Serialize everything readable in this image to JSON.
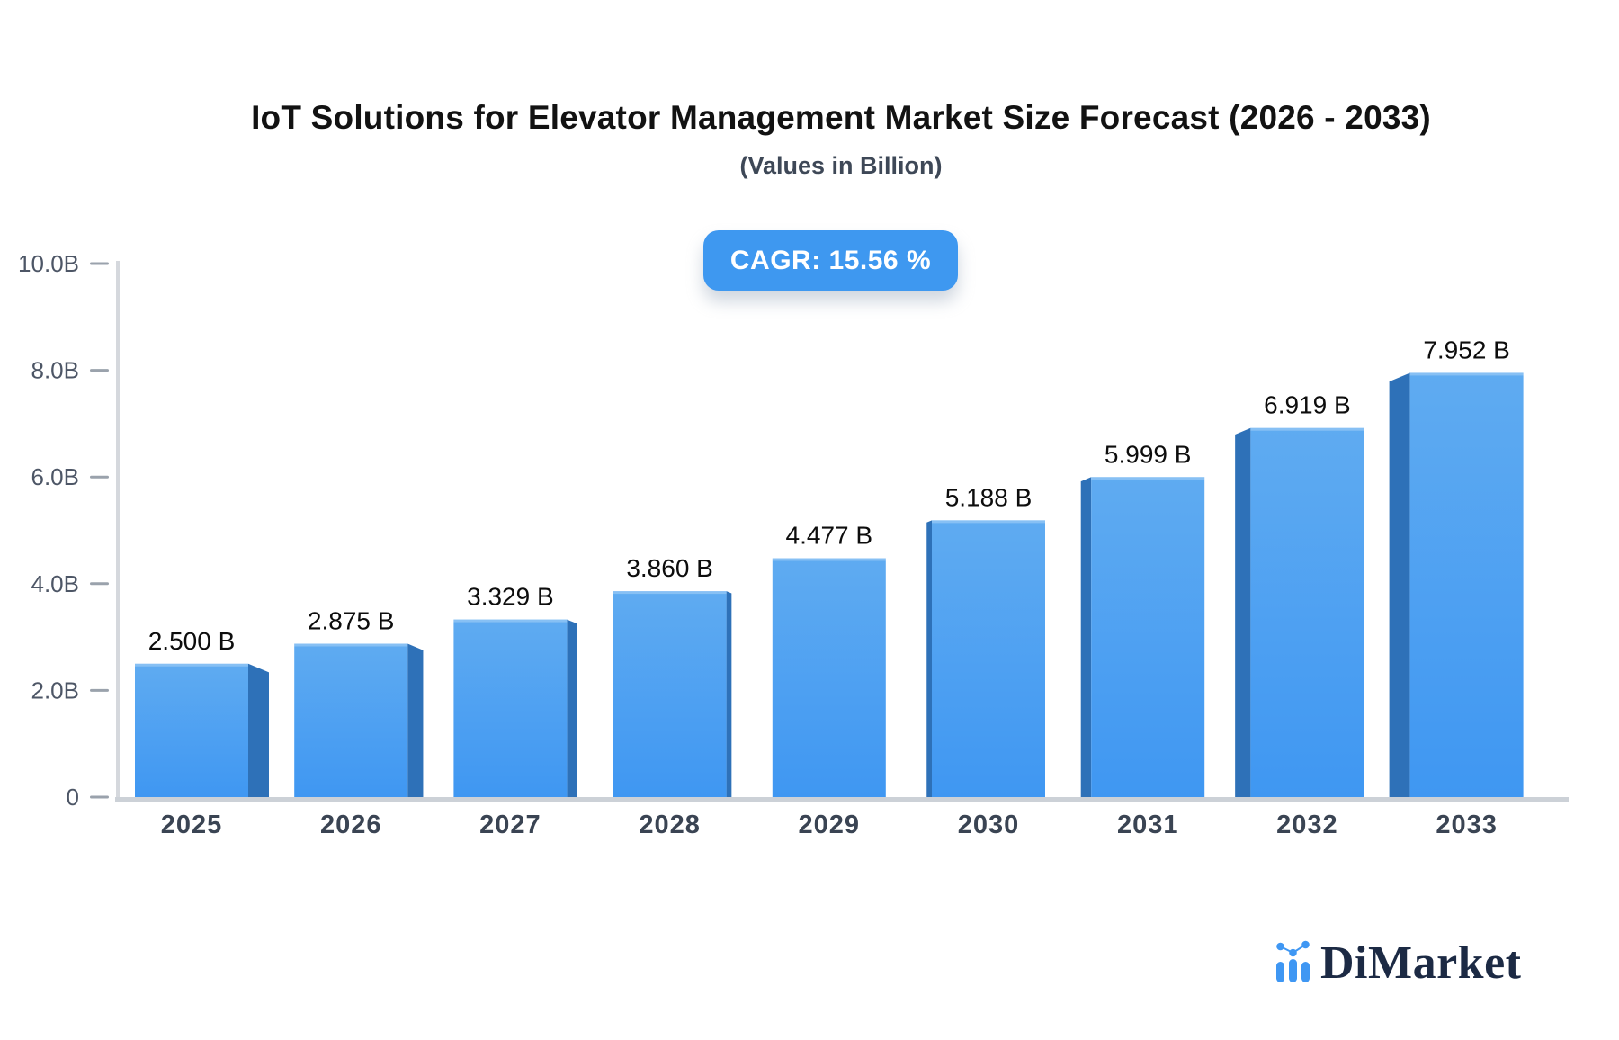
{
  "title": "IoT Solutions for Elevator Management Market Size Forecast (2026 - 2033)",
  "subtitle": "(Values in Billion)",
  "badge": {
    "label": "CAGR: 15.56 %",
    "bg_color": "#3e98f0",
    "text_color": "#ffffff"
  },
  "chart_data": {
    "type": "bar",
    "title": "IoT Solutions for Elevator Management Market Size Forecast (2026 - 2033)",
    "subtitle": "(Values in Billion)",
    "categories": [
      "2025",
      "2026",
      "2027",
      "2028",
      "2029",
      "2030",
      "2031",
      "2032",
      "2033"
    ],
    "values": [
      2.5,
      2.875,
      3.329,
      3.86,
      4.477,
      5.188,
      5.999,
      6.919,
      7.952
    ],
    "value_label_suffix": " B",
    "value_labels": [
      "2.500 B",
      "2.875 B",
      "3.329 B",
      "3.860 B",
      "4.477 B",
      "5.188 B",
      "5.999 B",
      "6.919 B",
      "7.952 B"
    ],
    "xlabel": "",
    "ylabel": "",
    "ylim": [
      0,
      10
    ],
    "ytick_values": [
      0,
      2,
      4,
      6,
      8,
      10
    ],
    "ytick_labels": [
      "0",
      "2.0B",
      "4.0B",
      "6.0B",
      "8.0B",
      "10.0B"
    ],
    "grid": false,
    "legend": false,
    "colors": {
      "bar_top": "#5fabf1",
      "bar_bottom": "#3f97f2",
      "bar_side": "#2e71b8",
      "bar_highlight": "rgba(255,255,255,0.25)",
      "axis_line": "#d5d8dd",
      "baseline": "#ccd1d7",
      "tick_dash": "#9aa2ac",
      "ytick_text": "#4d5666",
      "xtick_text": "#3a4453",
      "value_text": "#0d0d0d"
    }
  },
  "logo": {
    "text": "DiMarket",
    "icon": "mini-bar-chart-icon",
    "text_color": "#1c2a44",
    "icon_color": "#3f97f3"
  }
}
